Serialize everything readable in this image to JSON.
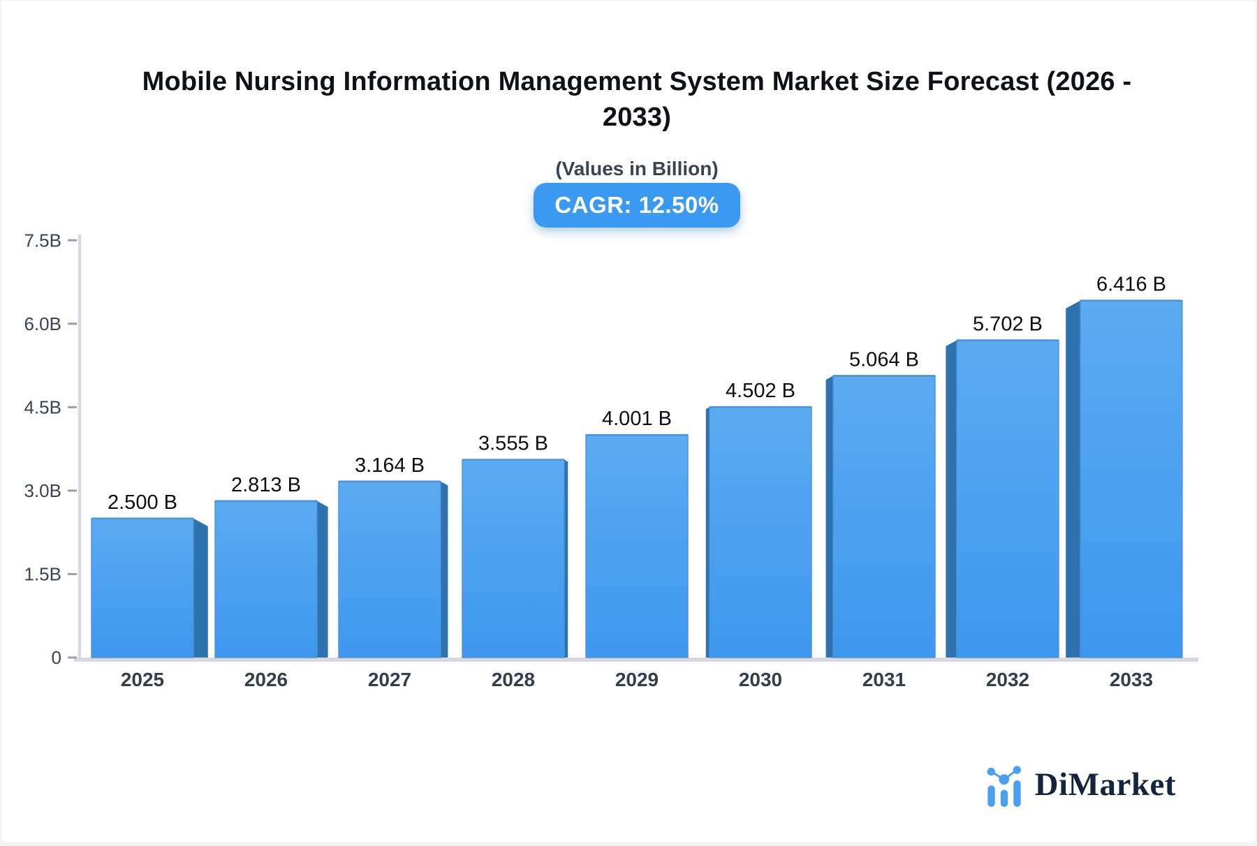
{
  "header": {
    "title_line1": "Mobile Nursing Information Management System Market Size Forecast (2026 -",
    "title_line2": "2033)",
    "subtitle": "(Values in Billion)",
    "cagr_badge": "CAGR: 12.50%"
  },
  "footer": {
    "logo_text": "DiMarket",
    "logo_icon": "bar-chart-with-trend-dots-icon"
  },
  "colors": {
    "accent_blue": "#3A9AF1",
    "bar_face_top": "#5BABF1",
    "bar_face_bottom": "#3E97EE",
    "bar_side": "#2F72B0",
    "bar_edge": "#4A92DC",
    "axis_line": "#D6D9DF",
    "tick": "#9AA0A8",
    "tick_label": "#3A4250",
    "value_label": "#0B0D10",
    "year_label": "#343D4C",
    "logo_navy": "#15263C",
    "logo_blue": "#4AA0F0"
  },
  "chart_data": {
    "type": "bar",
    "title": "Mobile Nursing Information Management System Market Size Forecast (2026 - 2033)",
    "subtitle": "(Values in Billion)",
    "annotation": "CAGR: 12.50%",
    "categories": [
      "2025",
      "2026",
      "2027",
      "2028",
      "2029",
      "2030",
      "2031",
      "2032",
      "2033"
    ],
    "values": [
      2.5,
      2.813,
      3.164,
      3.555,
      4.001,
      4.502,
      5.064,
      5.702,
      6.416
    ],
    "value_label_suffix": " B",
    "value_decimals": 3,
    "xlabel": "",
    "ylabel": "",
    "ylim": [
      0,
      7.5
    ],
    "ytick_step": 1.5,
    "ytick_labels": [
      "0",
      "1.5B",
      "3.0B",
      "4.5B",
      "6.0B",
      "7.5B"
    ],
    "grid": false,
    "legend_position": "none",
    "bar_style": "3d-perspective-center-vanishing"
  }
}
